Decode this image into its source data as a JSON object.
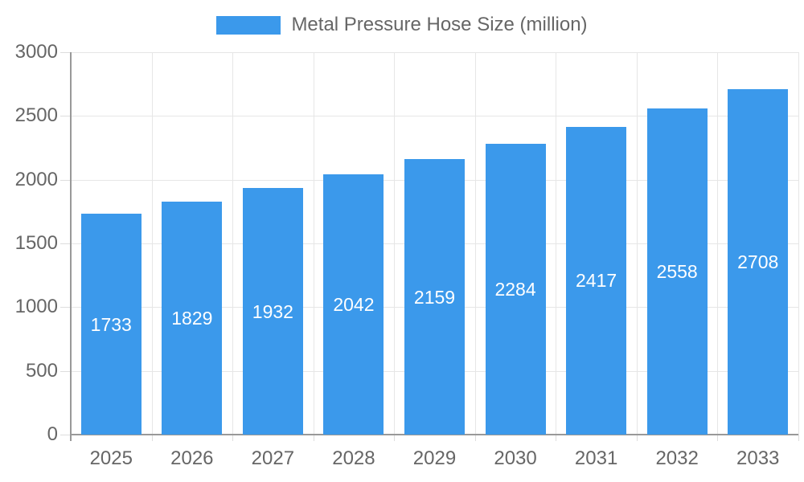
{
  "legend": {
    "label": "Metal Pressure Hose Size (million)"
  },
  "chart_data": {
    "type": "bar",
    "title": "Metal Pressure Hose Size (million)",
    "series_name": "Metal Pressure Hose Size (million)",
    "categories": [
      "2025",
      "2026",
      "2027",
      "2028",
      "2029",
      "2030",
      "2031",
      "2032",
      "2033"
    ],
    "values": [
      1733,
      1829,
      1932,
      2042,
      2159,
      2284,
      2417,
      2558,
      2708
    ],
    "xlabel": "",
    "ylabel": "",
    "ylim": [
      0,
      3000
    ],
    "yticks": [
      0,
      500,
      1000,
      1500,
      2000,
      2500,
      3000
    ],
    "grid": true,
    "legend_position": "top",
    "value_labels": "inside-center",
    "colors": {
      "bar": "#3B99EB",
      "value_label": "#FFFFFF",
      "axis_text": "#666666",
      "grid_line": "#E6E6E6",
      "axis_line": "#999999",
      "tick_mark": "#DDDDDD",
      "background": "#FFFFFF"
    }
  }
}
